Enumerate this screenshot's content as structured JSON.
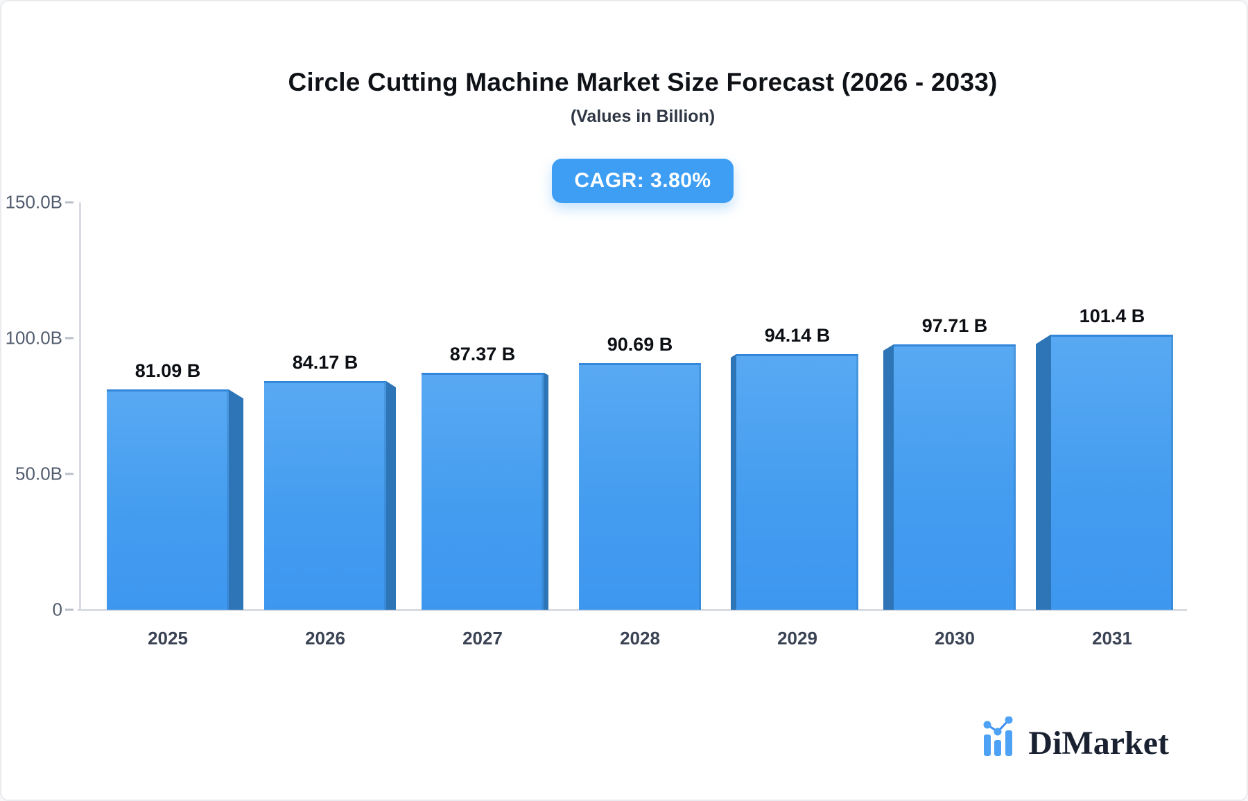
{
  "header": {
    "title": "Circle Cutting Machine Market Size Forecast (2026 - 2033)",
    "subtitle": "(Values in Billion)",
    "cagr_badge": "CAGR: 3.80%"
  },
  "chart_data": {
    "type": "bar",
    "title": "Circle Cutting Machine Market Size Forecast (2026 - 2033)",
    "subtitle": "(Values in Billion)",
    "unit": "Billion",
    "cagr": "3.80%",
    "categories": [
      "2025",
      "2026",
      "2027",
      "2028",
      "2029",
      "2030",
      "2031"
    ],
    "values": [
      81.09,
      84.17,
      87.37,
      90.69,
      94.14,
      97.71,
      101.4
    ],
    "value_labels": [
      "81.09 B",
      "84.17 B",
      "87.37 B",
      "90.69 B",
      "94.14 B",
      "97.71 B",
      "101.4 B"
    ],
    "ylim": [
      0,
      150
    ],
    "y_ticks": [
      {
        "label": "0",
        "value": 0
      },
      {
        "label": "50.0B",
        "value": 50
      },
      {
        "label": "100.0B",
        "value": 100
      },
      {
        "label": "150.0B",
        "value": 150
      }
    ],
    "grid": false,
    "legend": "none",
    "colors": {
      "bar_face": "#459df0",
      "bar_side": "#2d75b6",
      "badge_bg": "#3d9ef3",
      "axis_line": "#d8dce2"
    }
  },
  "branding": {
    "name": "DiMarket"
  }
}
